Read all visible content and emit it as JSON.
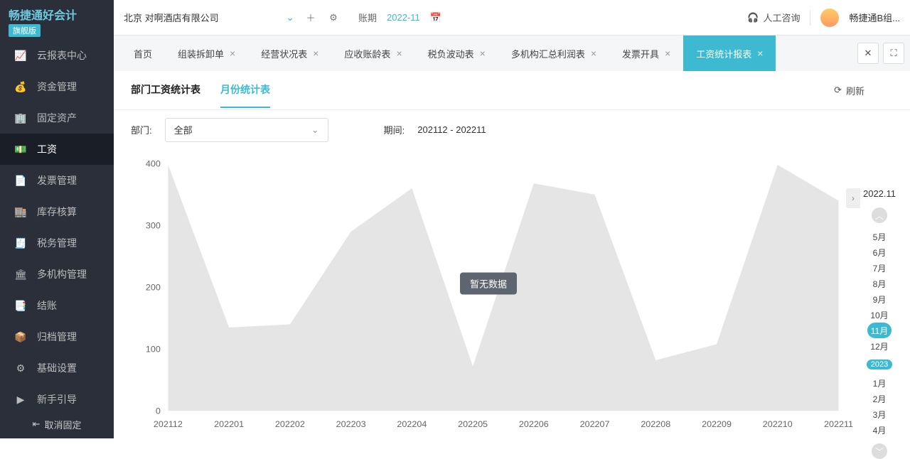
{
  "brand": {
    "name": "畅捷通好会计",
    "edition": "旗舰版"
  },
  "topbar": {
    "company": "北京 对啊酒店有限公司",
    "period_label": "账期",
    "period_value": "2022-11",
    "consult": "人工咨询",
    "user": "畅捷通B组..."
  },
  "sidebar": {
    "items": [
      {
        "label": "云报表中心",
        "icon": "chart"
      },
      {
        "label": "资金管理",
        "icon": "money"
      },
      {
        "label": "固定资产",
        "icon": "asset"
      },
      {
        "label": "工资",
        "icon": "salary",
        "active": true
      },
      {
        "label": "发票管理",
        "icon": "invoice"
      },
      {
        "label": "库存核算",
        "icon": "stock"
      },
      {
        "label": "税务管理",
        "icon": "tax"
      },
      {
        "label": "多机构管理",
        "icon": "org"
      },
      {
        "label": "结账",
        "icon": "close"
      },
      {
        "label": "归档管理",
        "icon": "archive"
      },
      {
        "label": "基础设置",
        "icon": "settings"
      },
      {
        "label": "新手引导",
        "icon": "guide"
      }
    ],
    "pin": "取消固定"
  },
  "tabs": {
    "items": [
      {
        "label": "首页",
        "closable": false
      },
      {
        "label": "组装拆卸单",
        "closable": true
      },
      {
        "label": "经营状况表",
        "closable": true
      },
      {
        "label": "应收账龄表",
        "closable": true
      },
      {
        "label": "税负波动表",
        "closable": true
      },
      {
        "label": "多机构汇总利润表",
        "closable": true
      },
      {
        "label": "发票开具",
        "closable": true
      },
      {
        "label": "工资统计报表",
        "closable": true,
        "active": true
      }
    ]
  },
  "subtabs": {
    "items": [
      {
        "label": "部门工资统计表"
      },
      {
        "label": "月份统计表",
        "active": true
      }
    ],
    "refresh": "刷新"
  },
  "filters": {
    "dept_label": "部门:",
    "dept_value": "全部",
    "period_label": "期间:",
    "period_value": "202112 - 202211"
  },
  "chart": {
    "type": "area",
    "ylim": [
      0,
      400
    ],
    "ytick_step": 100,
    "yticks": [
      0,
      100,
      200,
      300,
      400
    ],
    "categories": [
      "202112",
      "202201",
      "202202",
      "202203",
      "202204",
      "202205",
      "202206",
      "202207",
      "202208",
      "202209",
      "202210",
      "202211"
    ],
    "values": [
      398,
      135,
      140,
      290,
      360,
      72,
      368,
      350,
      82,
      108,
      398,
      340
    ],
    "area_color": "#e5e5e5",
    "axis_color": "#666666",
    "label_fontsize": 12,
    "no_data_label": "暂无数据",
    "no_data_bg": "#5d6570"
  },
  "monthrail": {
    "current": "2022.11",
    "pre_months": [
      "5月",
      "6月",
      "7月",
      "8月",
      "9月",
      "10月",
      "11月",
      "12月"
    ],
    "active_month": "11月",
    "next_year": "2023",
    "post_months": [
      "1月",
      "2月",
      "3月",
      "4月"
    ]
  }
}
